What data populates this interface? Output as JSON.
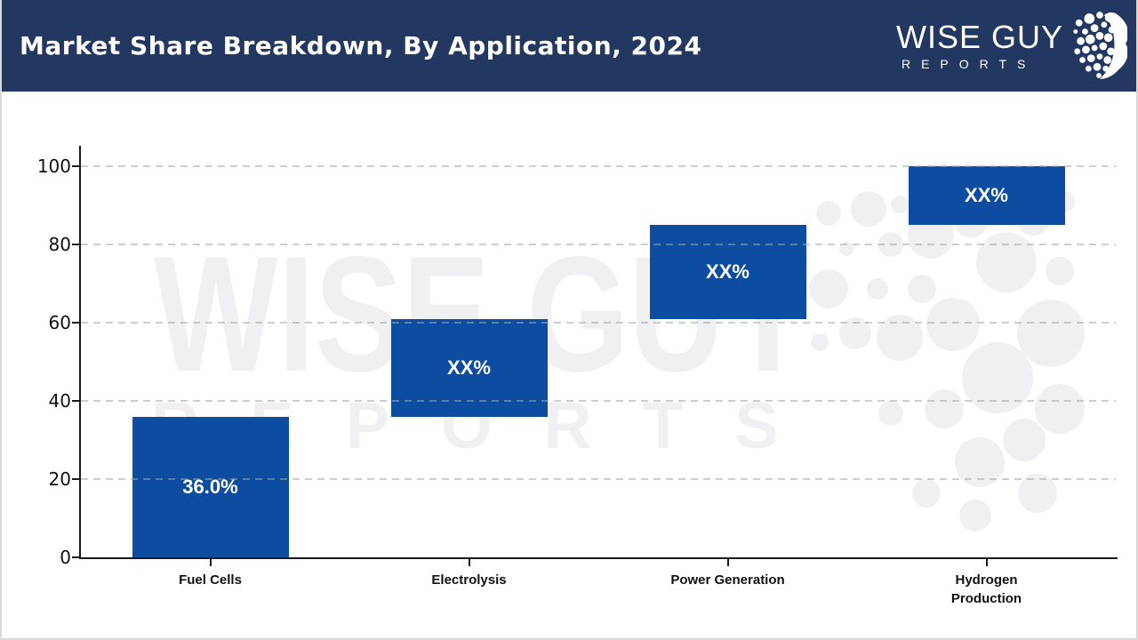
{
  "header": {
    "title": "Market Share Breakdown, By Application, 2024",
    "bg_color": "#223861",
    "logo": {
      "name": "WISE GUY",
      "subtitle": "REPORTS"
    }
  },
  "watermark": {
    "line1": "WISE GUY",
    "line2": "REPORTS"
  },
  "chart_data": {
    "type": "bar",
    "subtype": "waterfall",
    "title": "Market Share Breakdown, By Application, 2024",
    "categories": [
      "Fuel Cells",
      "Electrolysis",
      "Power Generation",
      "Hydrogen Production"
    ],
    "series": [
      {
        "name": "Market Share (%)",
        "segments": [
          {
            "category": "Fuel Cells",
            "start": 0,
            "end": 36,
            "label": "36.0%"
          },
          {
            "category": "Electrolysis",
            "start": 36,
            "end": 61,
            "label": "XX%"
          },
          {
            "category": "Power Generation",
            "start": 61,
            "end": 85,
            "label": "XX%"
          },
          {
            "category": "Hydrogen Production",
            "start": 85,
            "end": 100,
            "label": "XX%"
          }
        ]
      }
    ],
    "xlabel": "",
    "ylabel": "",
    "ylim": [
      0,
      105
    ],
    "yticks": [
      0,
      20,
      40,
      60,
      80,
      100
    ],
    "grid": "horizontal-dashed",
    "grid_above_bars": true,
    "legend": "none",
    "bar_color": "#0c4da2",
    "bar_label_color": "#ffffff",
    "axis_color": "#1a1a1a",
    "grid_color": "#c9c9c9"
  }
}
